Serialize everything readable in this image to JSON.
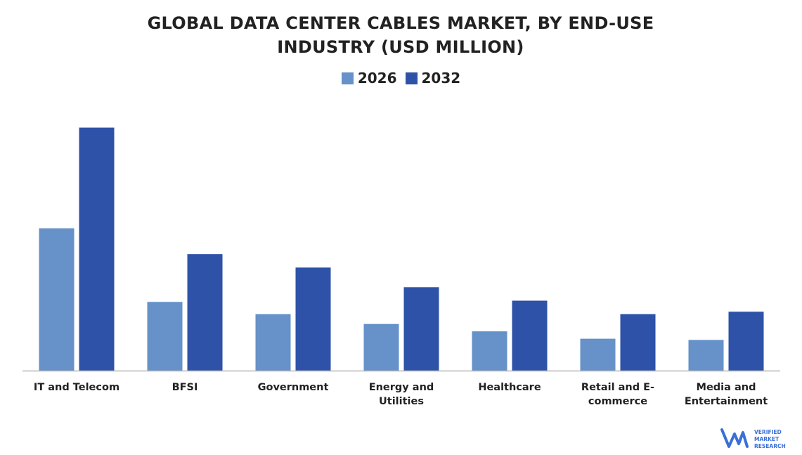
{
  "chart_data": {
    "type": "bar",
    "title_line1": "GLOBAL DATA CENTER CABLES MARKET, BY END-USE",
    "title_line2": "INDUSTRY (USD MILLION)",
    "categories": [
      [
        "IT and Telecom"
      ],
      [
        "BFSI"
      ],
      [
        "Government"
      ],
      [
        "Energy and",
        "Utilities"
      ],
      [
        "Healthcare"
      ],
      [
        "Retail and E-",
        "commerce"
      ],
      [
        "Media and",
        "Entertainment"
      ]
    ],
    "series": [
      {
        "name": "2026",
        "color": "#6691c9",
        "values": [
          58,
          28,
          23,
          19,
          16,
          13,
          12.5
        ]
      },
      {
        "name": "2032",
        "color": "#2d52a8",
        "values": [
          99,
          47.5,
          42,
          34,
          28.5,
          23,
          24
        ]
      }
    ],
    "ylim": [
      0,
      100
    ],
    "grid": false,
    "legend": "top-center"
  },
  "logo": {
    "line1": "VERIFIED",
    "line2": "MARKET",
    "line3": "RESEARCH"
  }
}
